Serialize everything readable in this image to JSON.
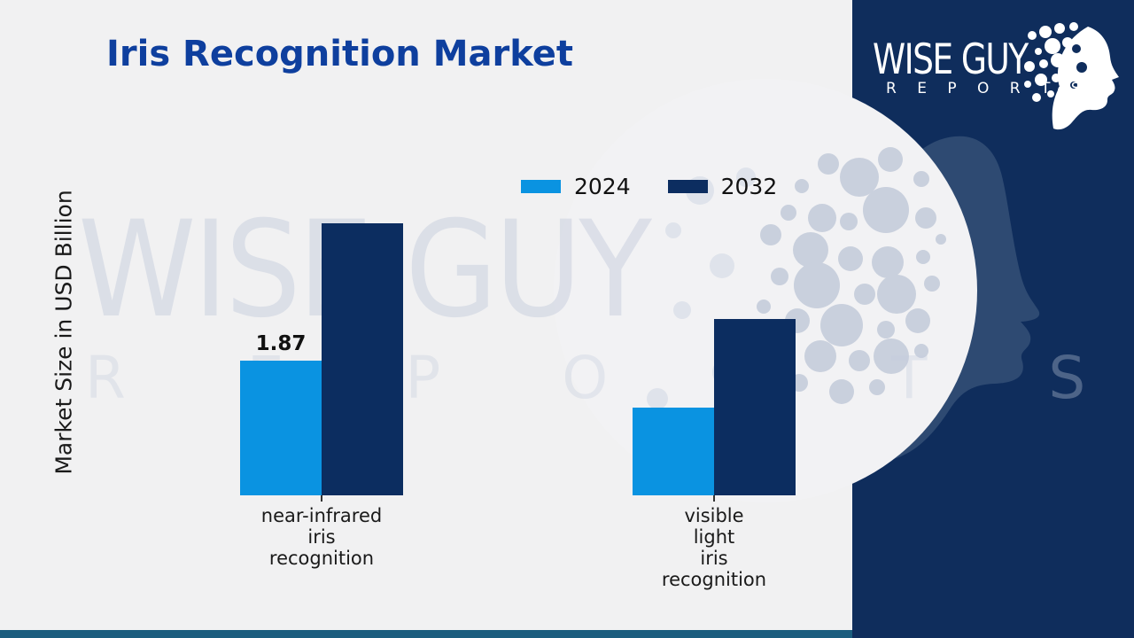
{
  "header": {
    "title": "Iris Recognition Market",
    "title_color": "#0e3f9e"
  },
  "logo": {
    "brand": "WISE GUY",
    "subtitle": "R E P O R T S"
  },
  "watermark": {
    "line1": "WISE GUY",
    "line2": "R E P O R T S"
  },
  "colors": {
    "background": "#f1f1f2",
    "panel_navy": "#0f2d5c",
    "face_blue": "#2e4a72",
    "brain_dots": "#c9d0dd",
    "teal_strip": "#1b5d7e",
    "bar_2024": "#0a93e1",
    "bar_2032": "#0c2d60"
  },
  "chart_data": {
    "type": "bar",
    "title": "Iris Recognition Market",
    "xlabel": "",
    "ylabel": "Market Size in USD Billion",
    "categories": [
      "near-infrared iris recognition",
      "visible light iris recognition"
    ],
    "categories_lines": [
      [
        "near-infrared",
        "iris",
        "recognition"
      ],
      [
        "visible",
        "light",
        "iris",
        "recognition"
      ]
    ],
    "series": [
      {
        "name": "2024",
        "color": "#0a93e1",
        "values": [
          1.87,
          1.22
        ],
        "point_labels": [
          "1.87",
          ""
        ]
      },
      {
        "name": "2032",
        "color": "#0c2d60",
        "values": [
          3.78,
          2.45
        ],
        "point_labels": [
          "",
          ""
        ]
      }
    ],
    "ylim": [
      0,
      4.2
    ],
    "grid": false,
    "legend_position": "top-center"
  }
}
